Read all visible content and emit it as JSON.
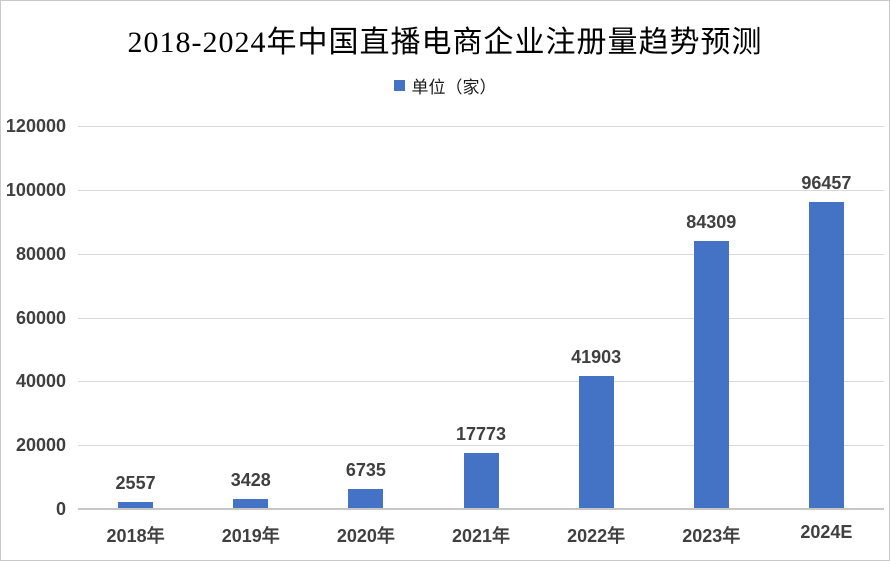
{
  "title": "2018-2024年中国直播电商企业注册量趋势预测",
  "legend": {
    "label": "单位（家）",
    "marker_color": "#4472C4"
  },
  "colors": {
    "bar": "#4472C4",
    "gridline": "#d9d9d9",
    "axis_line": "#c6c6c6",
    "tick_text": "#404040",
    "title_text": "#000000"
  },
  "chart_data": {
    "type": "bar",
    "title": "2018-2024年中国直播电商企业注册量趋势预测",
    "legend_entries": [
      "单位（家）"
    ],
    "legend_position": "top",
    "categories": [
      "2018年",
      "2019年",
      "2020年",
      "2021年",
      "2022年",
      "2023年",
      "2024E"
    ],
    "values": [
      2557,
      3428,
      6735,
      17773,
      41903,
      84309,
      96457
    ],
    "data_labels": [
      2557,
      3428,
      6735,
      17773,
      41903,
      84309,
      96457
    ],
    "xlabel": "",
    "ylabel": "",
    "ylim": [
      0,
      120000
    ],
    "yticks": [
      0,
      20000,
      40000,
      60000,
      80000,
      100000,
      120000
    ],
    "grid": true,
    "bar_color": "#4472C4"
  }
}
